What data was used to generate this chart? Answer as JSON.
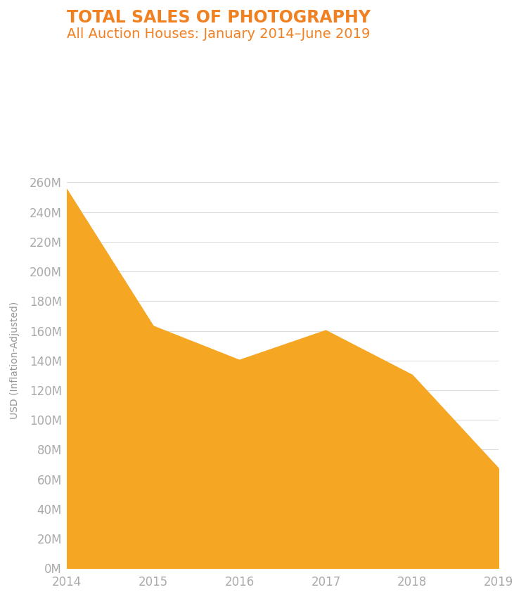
{
  "title": "TOTAL SALES OF PHOTOGRAPHY",
  "subtitle": "All Auction Houses: January 2014–June 2019",
  "title_color": "#F08020",
  "subtitle_color": "#F08020",
  "fill_color": "#F5A623",
  "line_color": "#F5A623",
  "background_color": "#FFFFFF",
  "grid_color": "#DDDDDD",
  "tick_label_color": "#AAAAAA",
  "ylabel": "USD (Inflation-Adjusted)",
  "ylabel_color": "#999999",
  "x_values": [
    2014,
    2015,
    2016,
    2017,
    2018,
    2019
  ],
  "y_values": [
    255000000,
    163000000,
    140000000,
    160000000,
    130000000,
    67000000
  ],
  "ylim": [
    0,
    280000000
  ],
  "ytick_values": [
    0,
    20000000,
    40000000,
    60000000,
    80000000,
    100000000,
    120000000,
    140000000,
    160000000,
    180000000,
    200000000,
    220000000,
    240000000,
    260000000
  ],
  "xlim": [
    2014,
    2019
  ],
  "title_fontsize": 17,
  "subtitle_fontsize": 14,
  "tick_fontsize": 12,
  "ylabel_fontsize": 10
}
